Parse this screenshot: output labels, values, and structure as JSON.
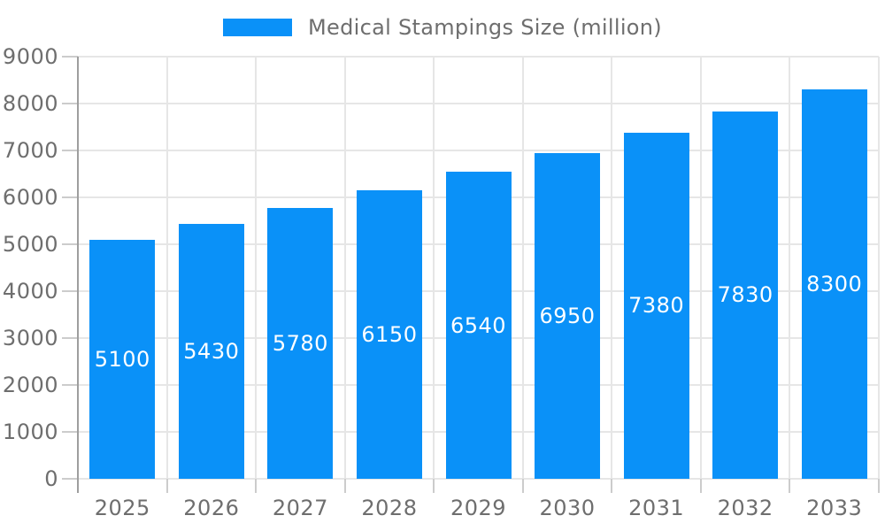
{
  "chart_data": {
    "type": "bar",
    "title": "Medical Stampings Size (million)",
    "legend_entries": [
      "Medical Stampings Size (million)"
    ],
    "legend_position": "top-center",
    "categories": [
      "2025",
      "2026",
      "2027",
      "2028",
      "2029",
      "2030",
      "2031",
      "2032",
      "2033"
    ],
    "values": [
      5100,
      5430,
      5780,
      6150,
      6540,
      6950,
      7380,
      7830,
      8300
    ],
    "value_labels_inside_bars": true,
    "xlabel": "",
    "ylabel": "",
    "ylim": [
      0,
      9000
    ],
    "y_tick_step": 1000,
    "y_tick_labels": [
      "0",
      "1000",
      "2000",
      "3000",
      "4000",
      "5000",
      "6000",
      "7000",
      "8000",
      "9000"
    ],
    "grid": true
  },
  "colors": {
    "bar": "#0a91f8",
    "gridline": "#e6e6e6",
    "tick": "#cccccc",
    "axis_line": "#9e9e9e",
    "text": "#6e6e6e",
    "value_label": "#ffffff",
    "background": "#ffffff"
  }
}
